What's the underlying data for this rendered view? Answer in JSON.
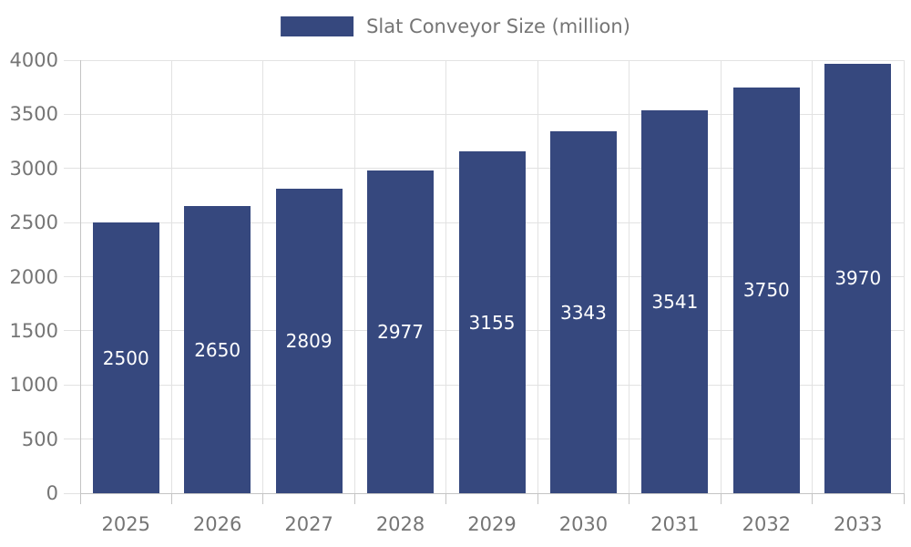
{
  "chart_data": {
    "type": "bar",
    "title": "",
    "xlabel": "",
    "ylabel": "",
    "categories": [
      "2025",
      "2026",
      "2027",
      "2028",
      "2029",
      "2030",
      "2031",
      "2032",
      "2033"
    ],
    "series": [
      {
        "name": "Slat Conveyor Size (million)",
        "values": [
          2500,
          2650,
          2809,
          2977,
          3155,
          3343,
          3541,
          3750,
          3970
        ]
      }
    ],
    "bar_value_labels_visible": true,
    "ylim": [
      0,
      4000
    ],
    "ytick_step": 500,
    "ytick_labels": [
      "0",
      "500",
      "1000",
      "1500",
      "2000",
      "2500",
      "3000",
      "3500",
      "4000"
    ],
    "grid": true,
    "legend_position": "top-center"
  },
  "colors": {
    "bar": "#36487E",
    "bar_label": "#ffffff",
    "grid": "#e2e2e2",
    "axis": "#c4c4c4",
    "tick_label": "#757575",
    "background": "#ffffff"
  }
}
